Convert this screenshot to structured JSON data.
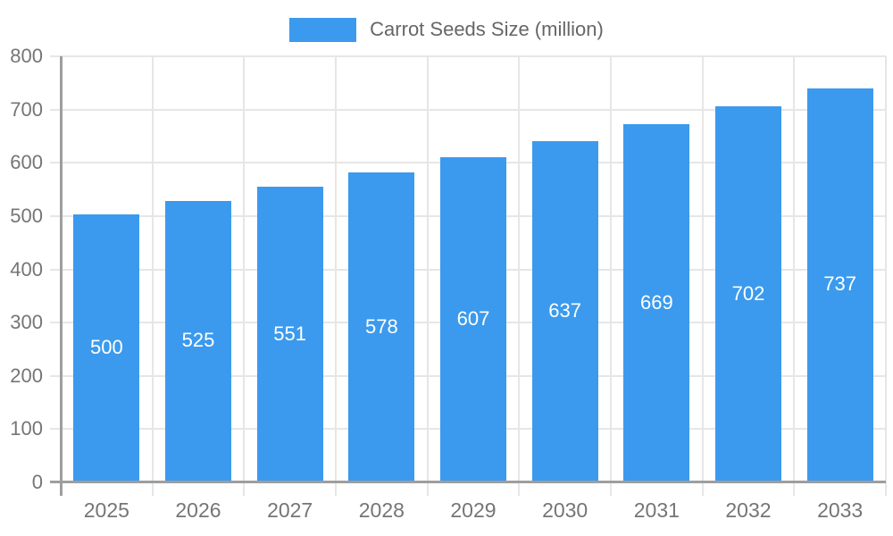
{
  "chart_data": {
    "type": "bar",
    "title": "",
    "legend": "Carrot Seeds Size (million)",
    "legend_position": "top-center",
    "categories": [
      "2025",
      "2026",
      "2027",
      "2028",
      "2029",
      "2030",
      "2031",
      "2032",
      "2033"
    ],
    "series": [
      {
        "name": "Carrot Seeds Size (million)",
        "values": [
          500,
          525,
          551,
          578,
          607,
          637,
          669,
          702,
          737
        ]
      }
    ],
    "data_labels": [
      "500",
      "525",
      "551",
      "578",
      "607",
      "637",
      "669",
      "702",
      "737"
    ],
    "xlabel": "",
    "ylabel": "",
    "ylim": [
      0,
      800
    ],
    "yticks": [
      0,
      100,
      200,
      300,
      400,
      500,
      600,
      700,
      800
    ],
    "grid": true,
    "colors": {
      "bar": "#3B9AED",
      "bar_label_text": "#ffffff",
      "axis_text": "#757575",
      "legend_text": "#666666",
      "gridline": "#e6e6e6",
      "axis_line": "#9e9e9e"
    }
  }
}
